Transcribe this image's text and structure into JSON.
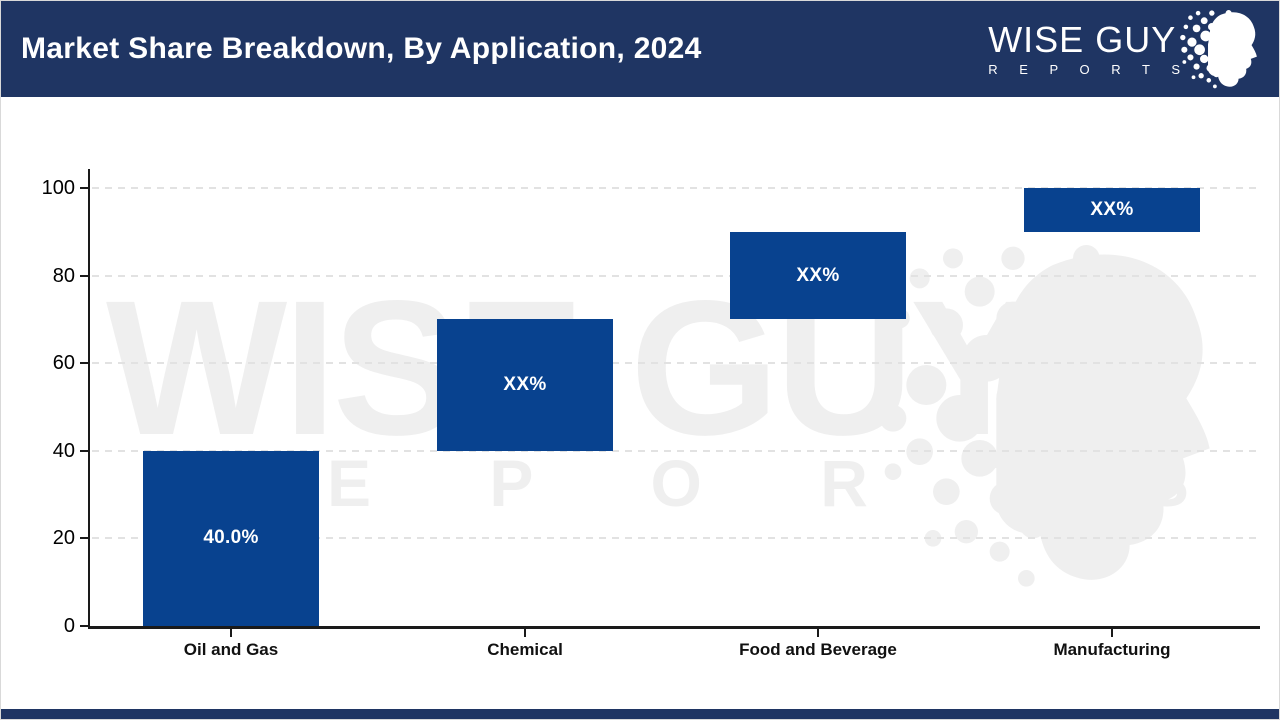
{
  "header": {
    "title": "Market Share Breakdown, By Application, 2024",
    "bg_color": "#1F3563",
    "logo": {
      "name": "WISE GUY",
      "sub": "R E P O R T S"
    }
  },
  "watermark": {
    "name": "WISE GUY",
    "sub": "R E P O R T S"
  },
  "chart_data": {
    "type": "bar",
    "subtype": "waterfall",
    "title": "Market Share Breakdown, By Application, 2024",
    "categories": [
      "Oil and Gas",
      "Chemical",
      "Food and Beverage",
      "Manufacturing"
    ],
    "segments": [
      {
        "category": "Oil and Gas",
        "start": 0,
        "end": 40,
        "label": "40.0%"
      },
      {
        "category": "Chemical",
        "start": 40,
        "end": 70,
        "label": "XX%"
      },
      {
        "category": "Food and Beverage",
        "start": 70,
        "end": 90,
        "label": "XX%"
      },
      {
        "category": "Manufacturing",
        "start": 90,
        "end": 100,
        "label": "XX%"
      }
    ],
    "y_ticks": [
      0,
      20,
      40,
      60,
      80,
      100
    ],
    "ylim": [
      0,
      100
    ],
    "xlabel": "",
    "ylabel": "",
    "grid": "dashed-horizontal",
    "legend": "none",
    "colors": {
      "bar": "#08428F",
      "header_bg": "#1F3563",
      "grid": "#E2E2E2",
      "axis": "#1A1A1A",
      "watermark": "#EFEFEF",
      "bar_label": "#FFFFFF"
    }
  }
}
